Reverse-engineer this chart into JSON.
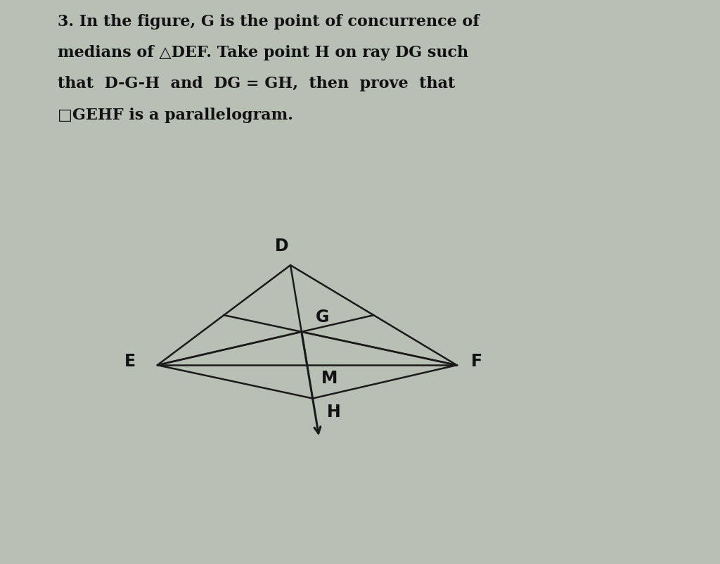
{
  "background_color": "#b8bfb5",
  "line_color": "#1a1a1a",
  "text_color": "#111111",
  "D": [
    0.42,
    0.88
  ],
  "E": [
    0.18,
    0.58
  ],
  "F": [
    0.72,
    0.58
  ],
  "title_line1": "3. In the figure, G is the point of concurrence of",
  "title_line2": "medians of △DEF. Take point H on ray DG such",
  "title_line3": "that  D-G-H  and  DG = GH,  then  prove  that",
  "title_line4": "□GEHF is a parallelogram.",
  "label_D": "D",
  "label_E": "E",
  "label_F": "F",
  "label_G": "G",
  "label_M": "M",
  "label_H": "H",
  "title_fontsize": 16,
  "label_fontsize": 17
}
